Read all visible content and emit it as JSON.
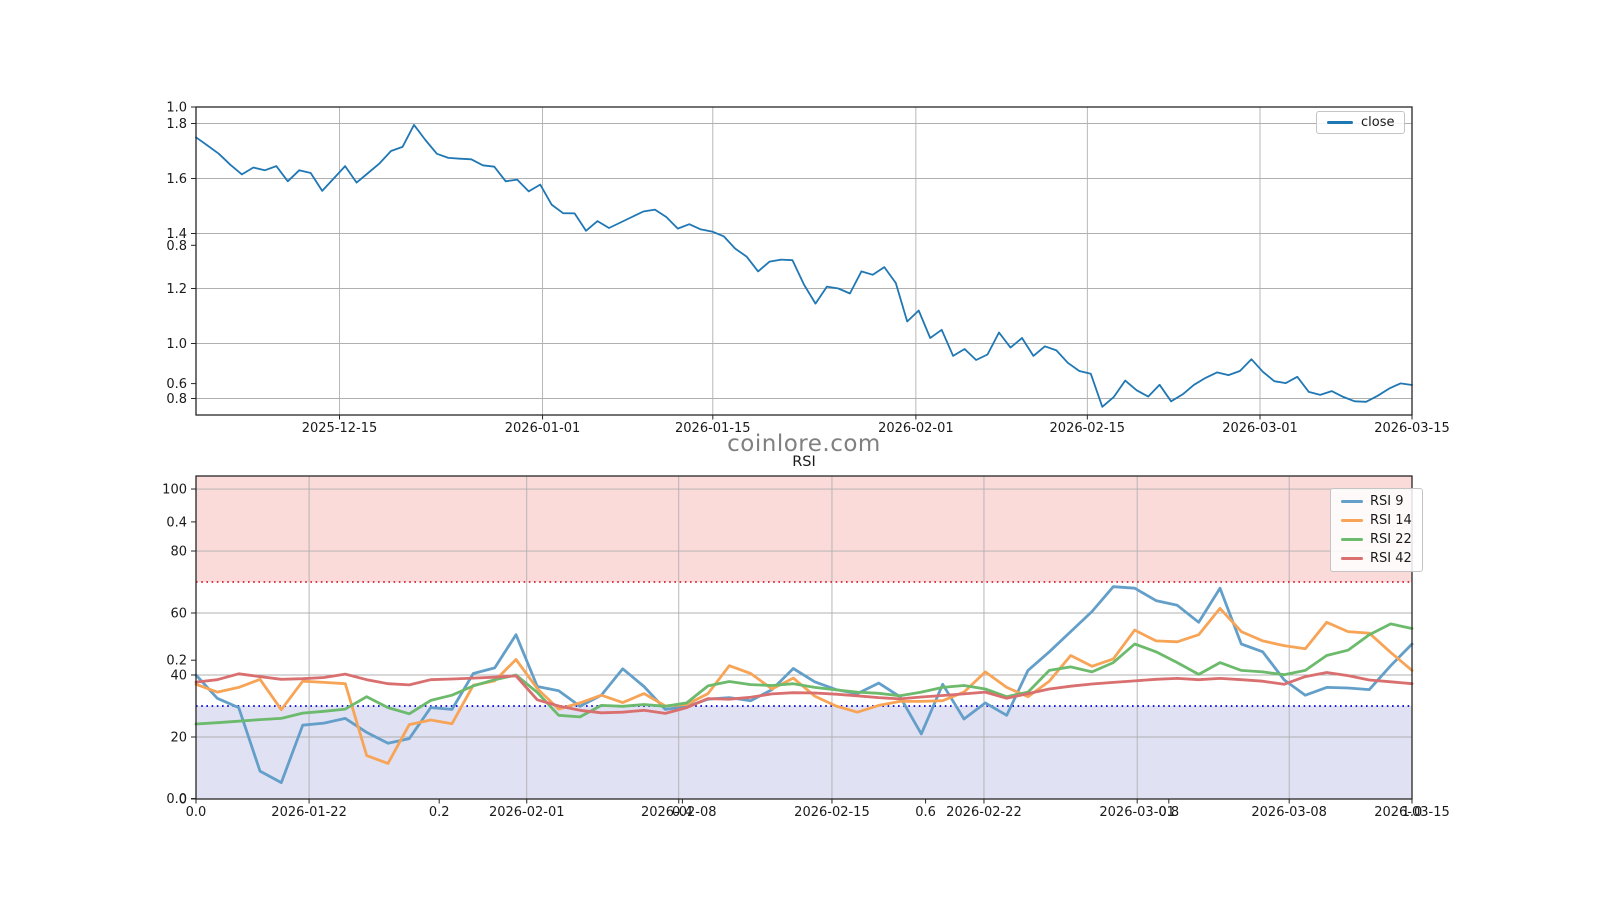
{
  "watermark": {
    "text": "coinlore.com"
  },
  "chart_data": [
    {
      "type": "line",
      "panel": "price",
      "title": "",
      "legend_position": "top-right",
      "grid": true,
      "ylim": [
        0.74,
        1.86
      ],
      "yticks": [
        {
          "v": 1.8,
          "label": "1.8"
        },
        {
          "v": 1.6,
          "label": "1.6"
        },
        {
          "v": 1.4,
          "label": "1.4"
        },
        {
          "v": 1.2,
          "label": "1.2"
        },
        {
          "v": 1.0,
          "label": "1.0"
        },
        {
          "v": 0.8,
          "label": "0.8"
        }
      ],
      "xticks": [
        {
          "f": 0.118,
          "label": "2025-12-15"
        },
        {
          "f": 0.285,
          "label": "2026-01-01"
        },
        {
          "f": 0.425,
          "label": "2026-01-15"
        },
        {
          "f": 0.592,
          "label": "2026-02-01"
        },
        {
          "f": 0.733,
          "label": "2026-02-15"
        },
        {
          "f": 0.875,
          "label": "2026-03-01"
        },
        {
          "f": 1.0,
          "label": "2026-03-15"
        }
      ],
      "series": [
        {
          "name": "close",
          "color": "#1f77b4",
          "width": 1.8,
          "values": [
            1.75,
            1.72,
            1.69,
            1.65,
            1.615,
            1.64,
            1.63,
            1.645,
            1.59,
            1.63,
            1.62,
            1.555,
            1.6,
            1.645,
            1.585,
            1.62,
            1.655,
            1.7,
            1.715,
            1.795,
            1.74,
            1.69,
            1.675,
            1.672,
            1.67,
            1.648,
            1.643,
            1.59,
            1.596,
            1.553,
            1.578,
            1.505,
            1.474,
            1.473,
            1.41,
            1.445,
            1.42,
            1.44,
            1.46,
            1.48,
            1.487,
            1.46,
            1.418,
            1.434,
            1.415,
            1.407,
            1.39,
            1.345,
            1.316,
            1.262,
            1.298,
            1.305,
            1.303,
            1.214,
            1.145,
            1.207,
            1.2,
            1.182,
            1.262,
            1.25,
            1.278,
            1.22,
            1.08,
            1.12,
            1.02,
            1.05,
            0.955,
            0.98,
            0.94,
            0.96,
            1.04,
            0.985,
            1.02,
            0.955,
            0.99,
            0.975,
            0.93,
            0.9,
            0.89,
            0.77,
            0.805,
            0.865,
            0.83,
            0.807,
            0.85,
            0.79,
            0.815,
            0.85,
            0.875,
            0.895,
            0.885,
            0.9,
            0.943,
            0.897,
            0.863,
            0.856,
            0.879,
            0.824,
            0.813,
            0.827,
            0.806,
            0.79,
            0.788,
            0.81,
            0.836,
            0.855,
            0.849
          ]
        }
      ]
    },
    {
      "type": "line",
      "panel": "rsi",
      "title": "RSI",
      "legend_position": "top-right",
      "grid": true,
      "ylim": [
        0,
        104.2
      ],
      "bands": [
        {
          "from": 70,
          "to": 104.2,
          "color": "#fbdada",
          "meaning": "overbought"
        },
        {
          "from": 0,
          "to": 30,
          "color": "#e1e1f4",
          "meaning": "oversold"
        }
      ],
      "hlines": [
        {
          "v": 70,
          "color": "#d62035",
          "style": "dotted"
        },
        {
          "v": 30,
          "color": "#0000cd",
          "style": "dotted"
        }
      ],
      "yticks": [
        {
          "v": 100,
          "label": "100"
        },
        {
          "v": 80,
          "label": "80"
        },
        {
          "v": 60,
          "label": "60"
        },
        {
          "v": 40,
          "label": "40"
        },
        {
          "v": 20,
          "label": "20"
        },
        {
          "v": 0,
          "label": "0"
        }
      ],
      "xticks": [
        {
          "f": 0.093,
          "label": "2026-01-22"
        },
        {
          "f": 0.272,
          "label": "2026-02-01"
        },
        {
          "f": 0.397,
          "label": "2026-02-08"
        },
        {
          "f": 0.523,
          "label": "2026-02-15"
        },
        {
          "f": 0.648,
          "label": "2026-02-22"
        },
        {
          "f": 0.774,
          "label": "2026-03-01"
        },
        {
          "f": 0.899,
          "label": "2026-03-08"
        },
        {
          "f": 1.0,
          "label": "2026-03-15"
        }
      ],
      "series": [
        {
          "name": "RSI 9",
          "color": "#639fc9",
          "width": 2.8,
          "values": [
            40,
            32.5,
            29.5,
            9,
            5.3,
            23.8,
            24.5,
            26,
            21.5,
            18,
            19.5,
            29.5,
            28.9,
            40.5,
            42.3,
            53,
            36.3,
            34.9,
            29.9,
            33.5,
            42,
            36.3,
            28.9,
            29.8,
            32.2,
            32.7,
            31.7,
            35.3,
            42.1,
            37.8,
            35.3,
            34,
            37.4,
            33,
            21,
            37,
            25.8,
            31,
            27,
            41.5,
            47.5,
            54,
            60.5,
            68.5,
            68,
            64,
            62.5,
            57,
            68,
            50,
            47.5,
            38.5,
            33.5,
            36,
            35.8,
            35.3,
            43,
            50
          ]
        },
        {
          "name": "RSI 14",
          "color": "#f7a457",
          "width": 2.8,
          "values": [
            37,
            34.5,
            36,
            38.6,
            28.8,
            38,
            37.6,
            37.2,
            14,
            11.5,
            24,
            25.5,
            24.3,
            36.7,
            38.1,
            45,
            35.6,
            29,
            31,
            33.5,
            31.1,
            34,
            30,
            30.5,
            34,
            43,
            40.5,
            35.5,
            39,
            33.2,
            30,
            28,
            30.2,
            31.5,
            31.5,
            31.7,
            34.5,
            41,
            36,
            33,
            38,
            46.3,
            42.8,
            45.2,
            54.5,
            51,
            50.7,
            53,
            61.5,
            54,
            51,
            49.5,
            48.5,
            57,
            54,
            53.5,
            47.3,
            41.5
          ]
        },
        {
          "name": "RSI 22",
          "color": "#6cba6c",
          "width": 2.8,
          "values": [
            24.2,
            24.6,
            25.1,
            25.6,
            26,
            27.7,
            28.3,
            29,
            33,
            29.5,
            27.5,
            31.8,
            33.5,
            36.5,
            38.5,
            40,
            34.4,
            27,
            26.5,
            30.2,
            29.9,
            30.5,
            29.9,
            31,
            36.5,
            37.9,
            36.9,
            36.6,
            37.2,
            36,
            35.2,
            34.5,
            34.1,
            33.3,
            34.5,
            36,
            36.6,
            35.5,
            33,
            34.5,
            41.5,
            42.6,
            41,
            44,
            50,
            47.5,
            44,
            40.2,
            44,
            41.5,
            41,
            40.1,
            41.5,
            46.3,
            48,
            53,
            56.5,
            55
          ]
        },
        {
          "name": "RSI 42",
          "color": "#d96f6f",
          "width": 2.8,
          "values": [
            37.7,
            38.5,
            40.4,
            39.5,
            38.6,
            38.8,
            39.2,
            40.3,
            38.5,
            37.2,
            36.8,
            38.5,
            38.7,
            39,
            39.3,
            39.7,
            32,
            30,
            28.6,
            27.8,
            28,
            28.6,
            27.6,
            29.5,
            32.4,
            32.2,
            32.8,
            33.9,
            34.3,
            34.2,
            33.8,
            33.3,
            32.7,
            32.3,
            32.9,
            33.4,
            33.9,
            34.5,
            32.5,
            34,
            35.5,
            36.4,
            37.1,
            37.6,
            38.1,
            38.6,
            38.9,
            38.5,
            38.9,
            38.5,
            38,
            37,
            39.5,
            40.8,
            39.8,
            38.4,
            37.8,
            37.2
          ]
        }
      ]
    }
  ],
  "ghost_axis": {
    "y_labels": [
      {
        "f": 1.0,
        "label": "1.0"
      },
      {
        "f": 0.8,
        "label": "0.8"
      },
      {
        "f": 0.6,
        "label": "0.6"
      },
      {
        "f": 0.4,
        "label": "0.4"
      },
      {
        "f": 0.2,
        "label": "0.2"
      },
      {
        "f": 0.0,
        "label": "0.0"
      }
    ],
    "x_labels": [
      {
        "f": 0.0,
        "label": "0.0"
      },
      {
        "f": 0.2,
        "label": "0.2"
      },
      {
        "f": 0.4,
        "label": "0.4"
      },
      {
        "f": 0.6,
        "label": "0.6"
      },
      {
        "f": 0.8,
        "label": "0.8"
      },
      {
        "f": 1.0,
        "label": "1.0"
      }
    ]
  },
  "style": {
    "grid_color": "#b0b0b0",
    "spine_color": "#262626",
    "tick_text_color": "#1a1a1a",
    "watermark_color": "#808080"
  }
}
